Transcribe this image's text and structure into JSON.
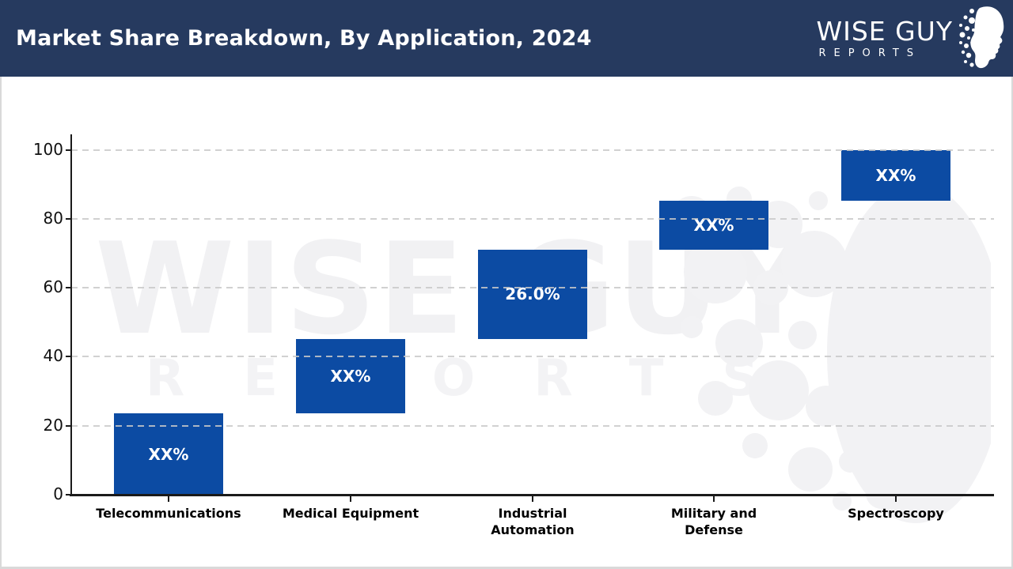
{
  "header": {
    "logo": {
      "line1": "WISE GUY",
      "line2": "REPORTS"
    }
  },
  "watermark": {
    "line1": "WISE GUY",
    "line2": "REPORTS"
  },
  "chart_data": {
    "type": "bar",
    "subtype": "waterfall",
    "title": "Market Share Breakdown, By Application, 2024",
    "xlabel": "",
    "ylabel": "",
    "ylim": [
      0,
      100
    ],
    "yticks": [
      0,
      20,
      40,
      60,
      80,
      100
    ],
    "grid": "horizontal-dashed",
    "legend": "none",
    "bar_color": "#0c4ba3",
    "label_color": "#ffffff",
    "categories": [
      "Telecommunications",
      "Medical Equipment",
      "Industrial Automation",
      "Military and Defense",
      "Spectroscopy"
    ],
    "category_lines": [
      [
        "Telecommunications"
      ],
      [
        "Medical Equipment"
      ],
      [
        "Industrial",
        "Automation"
      ],
      [
        "Military and",
        "Defense"
      ],
      [
        "Spectroscopy"
      ]
    ],
    "segments": [
      {
        "category": "Telecommunications",
        "start": 0,
        "end": 23.5,
        "value": 23.5,
        "label": "XX%"
      },
      {
        "category": "Medical Equipment",
        "start": 23.5,
        "end": 45.1,
        "value": 21.6,
        "label": "XX%"
      },
      {
        "category": "Industrial Automation",
        "start": 45.1,
        "end": 71.1,
        "value": 26.0,
        "label": "26.0%"
      },
      {
        "category": "Military and Defense",
        "start": 71.1,
        "end": 85.3,
        "value": 14.2,
        "label": "XX%"
      },
      {
        "category": "Spectroscopy",
        "start": 85.3,
        "end": 100.0,
        "value": 14.7,
        "label": "XX%"
      }
    ]
  }
}
